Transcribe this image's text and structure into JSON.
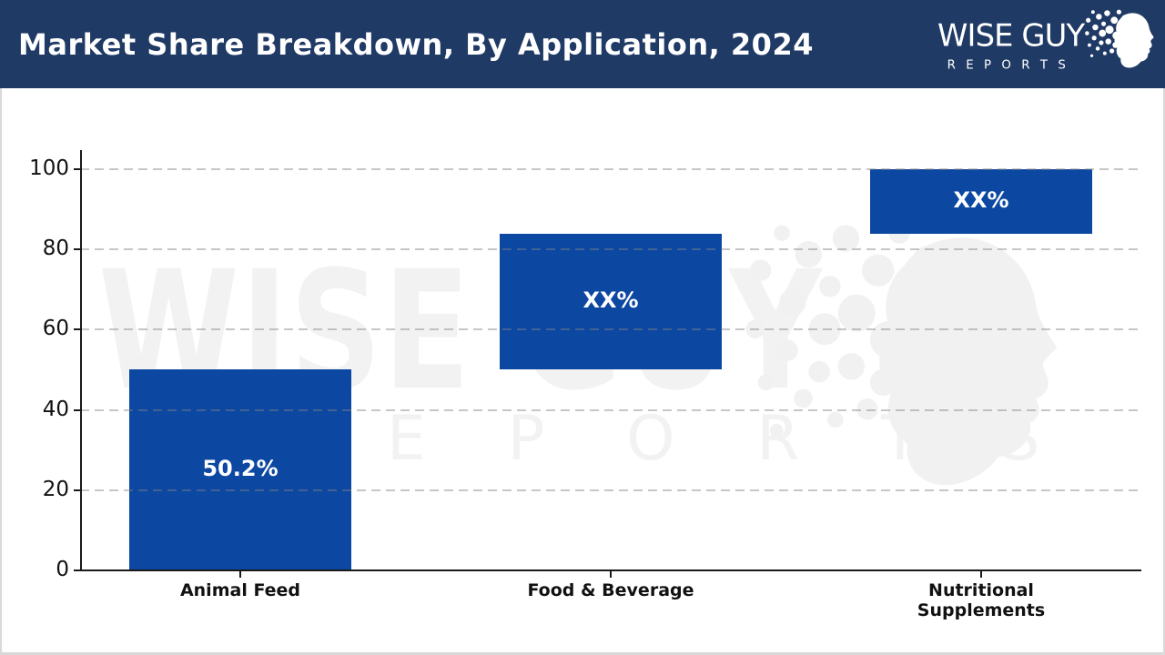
{
  "header": {
    "title": "Market Share Breakdown, By Application, 2024",
    "logo": {
      "wordmark": "WISE GUY",
      "subtext": "R E P O R T S",
      "icon": "face-profile-dots-icon"
    }
  },
  "watermark": {
    "wordmark": "WISE GUY",
    "subtext": "R E P O R T S",
    "icon": "face-profile-dots-icon"
  },
  "chart_data": {
    "type": "bar",
    "subtype": "floating-waterfall",
    "title": "Market Share Breakdown, By Application, 2024",
    "categories": [
      "Animal Feed",
      "Food & Beverage",
      "Nutritional Supplements"
    ],
    "series": [
      {
        "name": "Market Share",
        "segments": [
          {
            "category": "Animal Feed",
            "start": 0,
            "end": 50.2,
            "label": "50.2%"
          },
          {
            "category": "Food & Beverage",
            "start": 50.2,
            "end": 84,
            "label": "XX%"
          },
          {
            "category": "Nutritional Supplements",
            "start": 84,
            "end": 100,
            "label": "XX%"
          }
        ]
      }
    ],
    "xlabel": "",
    "ylabel": "",
    "ylim": [
      0,
      100
    ],
    "yticks": [
      0,
      20,
      40,
      60,
      80,
      100
    ],
    "grid": true,
    "grid_style": "dashed",
    "legend_position": "none",
    "bar_color": "#0C47A1",
    "bar_label_color": "#FFFFFF",
    "axis_color": "#1A1A1A",
    "tick_label_color": "#111111"
  },
  "colors": {
    "header_bg": "#203A66",
    "page_bg": "#FFFFFF",
    "card_border": "#D9D9D9",
    "watermark": "#F2F2F2",
    "gridline": "#CBCBCB"
  }
}
